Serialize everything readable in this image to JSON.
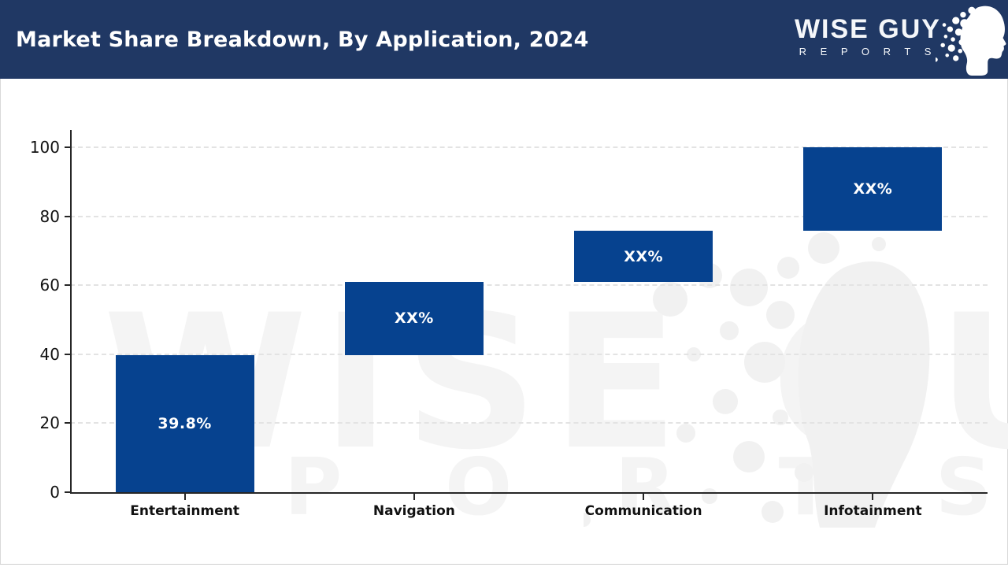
{
  "header": {
    "title": "Market Share Breakdown, By Application, 2024",
    "bg_color": "#203864",
    "logo": {
      "line1": "WISE GUY",
      "line2": "R E P O R T S",
      "face_icon": "dotted-head-profile"
    }
  },
  "watermark": {
    "line1": "WISE GUY",
    "line2": "P O R T S",
    "color": "#f4f4f4"
  },
  "chart_data": {
    "type": "bar",
    "subtype": "waterfall-stacked-percentage",
    "title": "Market Share Breakdown, By Application, 2024",
    "categories": [
      "Entertainment",
      "Navigation",
      "Communication",
      "Infotainment"
    ],
    "segments": [
      {
        "category": "Entertainment",
        "start": 0,
        "end": 39.8,
        "label": "39.8%"
      },
      {
        "category": "Navigation",
        "start": 39.8,
        "end": 61.0,
        "label": "XX%"
      },
      {
        "category": "Communication",
        "start": 61.0,
        "end": 75.7,
        "label": "XX%"
      },
      {
        "category": "Infotainment",
        "start": 75.7,
        "end": 100,
        "label": "XX%"
      }
    ],
    "bar_color": "#06428f",
    "bar_label_color": "#ffffff",
    "xlabel": "",
    "ylabel": "",
    "yticks": [
      0,
      20,
      40,
      60,
      80,
      100
    ],
    "ylim": [
      0,
      105
    ],
    "grid": "horizontal-dashed",
    "axis_color": "#262626",
    "legend": "none"
  }
}
